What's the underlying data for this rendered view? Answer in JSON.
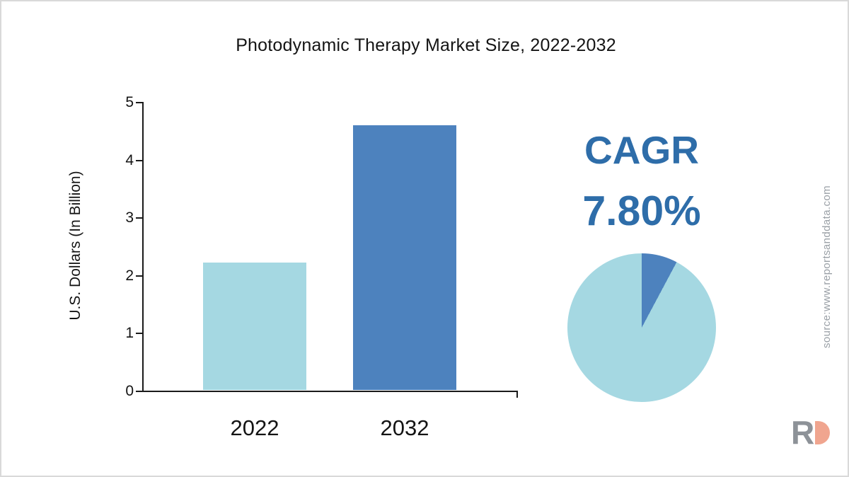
{
  "chart_data": {
    "type": "bar",
    "title": "Photodynamic Therapy Market Size, 2022-2032",
    "categories": [
      "2022",
      "2032"
    ],
    "values": [
      2.2,
      4.58
    ],
    "ylabel": "U.S. Dollars (In Billion)",
    "ylim": [
      0,
      5
    ],
    "yticks": [
      0,
      1,
      2,
      3,
      4,
      5
    ],
    "bar_colors": [
      "#a5d8e2",
      "#4d82be"
    ],
    "grid": "off",
    "pie": {
      "type": "pie",
      "values": [
        7.8,
        92.2
      ],
      "labels": [
        "CAGR slice",
        "remainder"
      ],
      "colors": [
        "#4d82be",
        "#a5d8e2"
      ]
    }
  },
  "cagr": {
    "label": "CAGR",
    "value": "7.80%",
    "color": "#2e6da9"
  },
  "source": "source:www.reportsanddata.com",
  "logo": {
    "letter": "R"
  }
}
